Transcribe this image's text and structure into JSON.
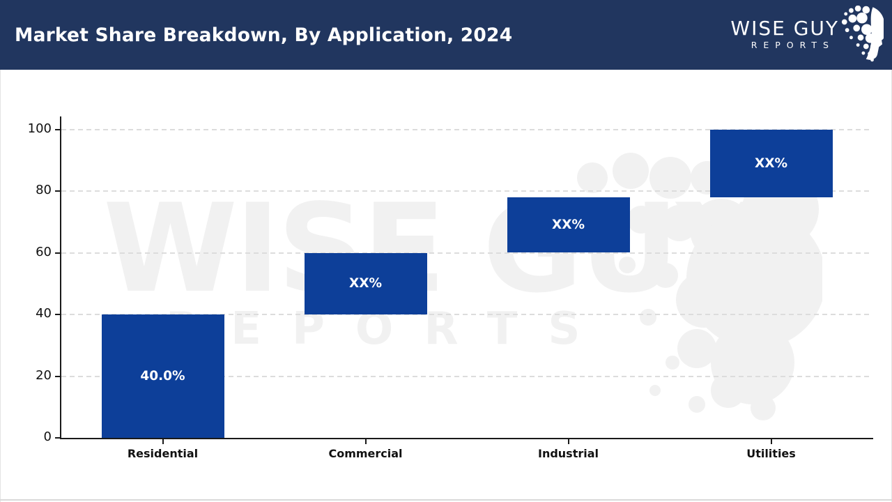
{
  "header": {
    "title": "Market Share Breakdown, By Application, 2024",
    "bg_color": "#21365f",
    "logo": {
      "line1": "WISE GUY",
      "line2": "REPORTS"
    }
  },
  "watermark": {
    "line1": "WISE GUY",
    "line2": "REPORTS"
  },
  "chart_data": {
    "type": "bar",
    "subtype": "waterfall",
    "title": "Market Share Breakdown, By Application, 2024",
    "categories": [
      "Residential",
      "Commercial",
      "Industrial",
      "Utilities"
    ],
    "segments": [
      {
        "category": "Residential",
        "start": 0,
        "end": 40,
        "label": "40.0%"
      },
      {
        "category": "Commercial",
        "start": 40,
        "end": 60,
        "label": "XX%"
      },
      {
        "category": "Industrial",
        "start": 60,
        "end": 78,
        "label": "XX%"
      },
      {
        "category": "Utilities",
        "start": 78,
        "end": 100,
        "label": "XX%"
      }
    ],
    "xlabel": "",
    "ylabel": "",
    "ylim": [
      0,
      100
    ],
    "yticks": [
      0,
      20,
      40,
      60,
      80,
      100
    ],
    "grid": "horizontal-dashed",
    "legend_position": "none",
    "bar_color": "#0d3f99",
    "bar_label_color": "#ffffff",
    "axis_color": "#1a1a1a",
    "grid_color": "#dcdcdc"
  }
}
